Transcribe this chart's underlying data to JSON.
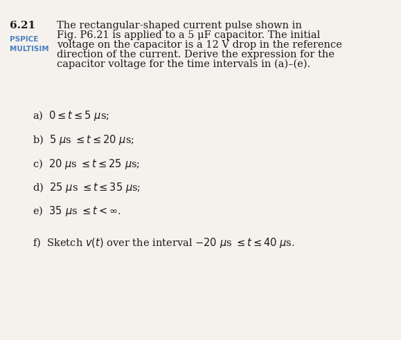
{
  "background_color": "#f5f2ee",
  "problem_number": "6.21",
  "pspice_label": "PSPICE",
  "multisim_label": "MULTISIM",
  "main_lines": [
    "The rectangular-shaped current pulse shown in",
    "Fig. P6.21 is applied to a 5 μF capacitor. The initial",
    "voltage on the capacitor is a 12 V drop in the reference",
    "direction of the current. Derive the expression for the",
    "capacitor voltage for the time intervals in (a)–(e)."
  ],
  "label_color": "#4a7fbf",
  "body_color": "#1a1a1a",
  "figwidth": 5.79,
  "figheight": 4.92,
  "dpi": 100,
  "num_fontsize": 11.0,
  "body_fontsize": 10.5,
  "label_fontsize": 7.5,
  "item_fontsize": 10.5
}
